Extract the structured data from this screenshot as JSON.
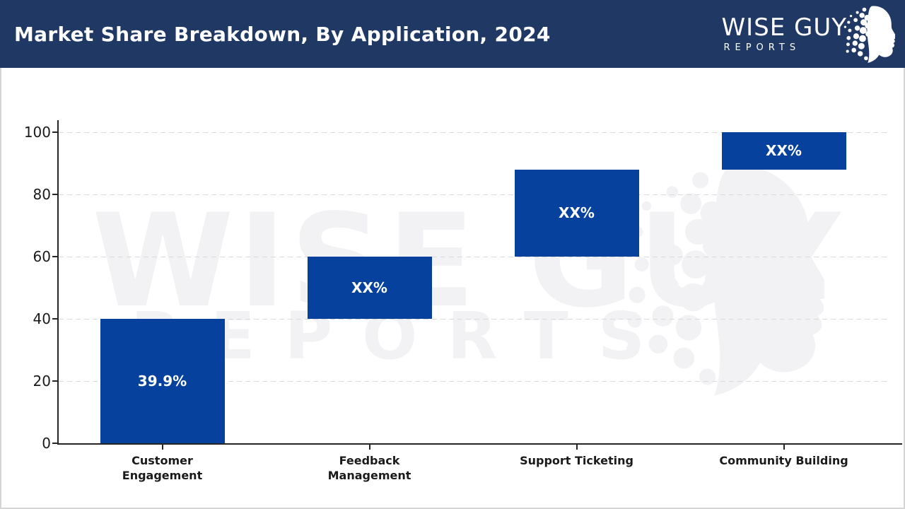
{
  "header": {
    "title": "Market Share Breakdown, By Application, 2024",
    "brand": {
      "name": "WISE GUY",
      "tagline": "REPORTS"
    }
  },
  "watermark": {
    "line1": "WISE GUY",
    "line2": "REPORTS"
  },
  "chart_data": {
    "type": "bar",
    "subtype": "waterfall",
    "title": "Market Share Breakdown, By Application, 2024",
    "categories": [
      "Customer\nEngagement",
      "Feedback\nManagement",
      "Support Ticketing",
      "Community Building"
    ],
    "segments": [
      {
        "category": "Customer Engagement",
        "start": 0,
        "end": 39.9,
        "label": "39.9%"
      },
      {
        "category": "Feedback Management",
        "start": 39.9,
        "end": 60,
        "label": "XX%"
      },
      {
        "category": "Support Ticketing",
        "start": 60,
        "end": 88,
        "label": "XX%"
      },
      {
        "category": "Community Building",
        "start": 88,
        "end": 100,
        "label": "XX%"
      }
    ],
    "ylim": [
      0,
      100
    ],
    "yticks": [
      0,
      20,
      40,
      60,
      80,
      100
    ],
    "grid": {
      "horizontal": true,
      "style": "dashed"
    },
    "legend": null,
    "colors": {
      "bar": "#06429d",
      "bar_label": "#ffffff",
      "axis": "#262626",
      "tick_label": "#1a1a1a",
      "gridline": "#d9d9d9",
      "header_bg": "#203864",
      "watermark": "#f2f2f4"
    }
  }
}
